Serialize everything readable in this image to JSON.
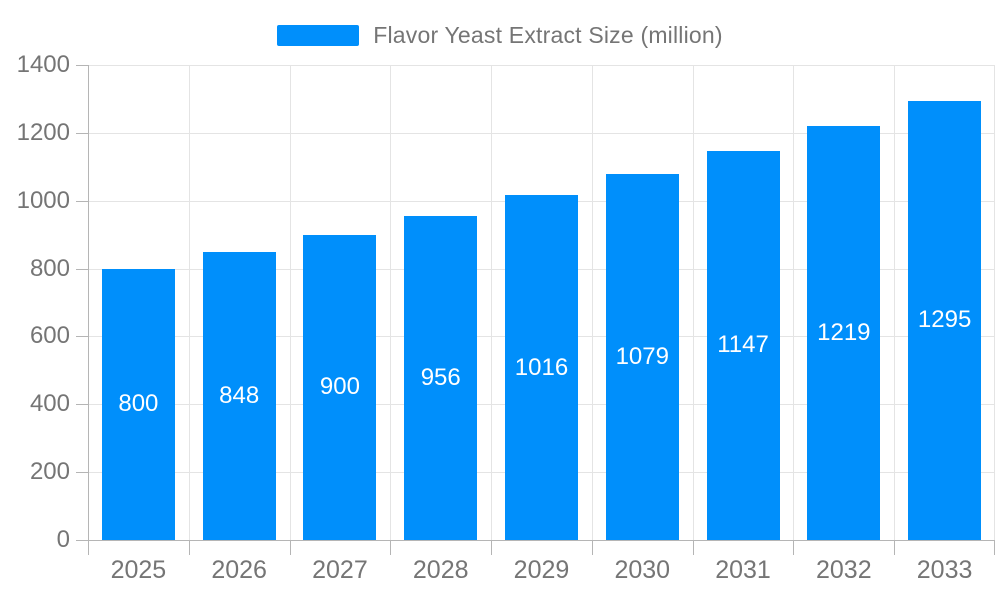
{
  "legend": {
    "label": "Flavor Yeast Extract Size (million)",
    "swatch_color": "#008FFB"
  },
  "chart_data": {
    "type": "bar",
    "title": "Flavor Yeast Extract Size (million)",
    "categories": [
      "2025",
      "2026",
      "2027",
      "2028",
      "2029",
      "2030",
      "2031",
      "2032",
      "2033"
    ],
    "values": [
      800,
      848,
      900,
      956,
      1016,
      1079,
      1147,
      1219,
      1295
    ],
    "series": [
      {
        "name": "Flavor Yeast Extract Size (million)",
        "values": [
          800,
          848,
          900,
          956,
          1016,
          1079,
          1147,
          1219,
          1295
        ]
      }
    ],
    "xlabel": "",
    "ylabel": "",
    "ylim": [
      0,
      1400
    ],
    "y_ticks": [
      0,
      200,
      400,
      600,
      800,
      1000,
      1200,
      1400
    ],
    "grid": true,
    "legend_position": "top-center",
    "value_labels": "inside-middle"
  },
  "colors": {
    "bar": "#008FFB",
    "grid": "#e4e4e4",
    "axis": "#b5b5b5",
    "text": "#757575",
    "value_label": "#ffffff",
    "background": "#ffffff"
  }
}
